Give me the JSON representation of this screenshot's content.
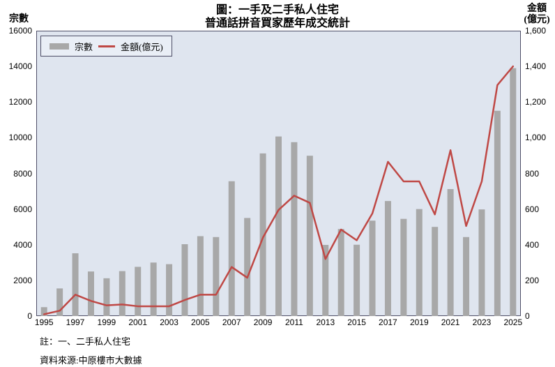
{
  "title": {
    "line1": "圖：一手及二手私人住宅",
    "line2": "普通話拼音買家歷年成交統計"
  },
  "axes": {
    "left_label": "宗數",
    "right_label_line1": "金額",
    "right_label_line2": "(億元)",
    "left_ticks": [
      "0",
      "2000",
      "4000",
      "6000",
      "8000",
      "10000",
      "12000",
      "14000",
      "16000"
    ],
    "right_ticks": [
      "0",
      "200",
      "400",
      "600",
      "800",
      "1,000",
      "1,200",
      "1,400",
      "1,600"
    ],
    "x_ticks": [
      "1995",
      "1997",
      "1999",
      "2001",
      "2003",
      "2005",
      "2007",
      "2009",
      "2011",
      "2013",
      "2015",
      "2017",
      "2019",
      "2021",
      "2023",
      "2025"
    ]
  },
  "legend": {
    "bars_label": "宗數",
    "line_label": "金額(億元)"
  },
  "notes": {
    "note": "註：一、二手私人住宅",
    "source": "資料來源:中原樓市大數據"
  },
  "colors": {
    "bar": "#a8a8a8",
    "line": "#bf4845",
    "plot_bg": "#dfe5ef",
    "plot_border": "#4d4d66",
    "legend_bg": "#e9eef6"
  },
  "chart_data": {
    "type": "bar",
    "subtype": "combo-bar-line-dual-axis",
    "title": "圖：一手及二手私人住宅 普通話拼音買家歷年成交統計",
    "categories": [
      1995,
      1996,
      1997,
      1998,
      1999,
      2000,
      2001,
      2002,
      2003,
      2004,
      2005,
      2006,
      2007,
      2008,
      2009,
      2010,
      2011,
      2012,
      2013,
      2014,
      2015,
      2016,
      2017,
      2018,
      2019,
      2020,
      2021,
      2022,
      2023,
      2024,
      2025
    ],
    "series": [
      {
        "name": "宗數",
        "type": "bar",
        "y_axis": "left",
        "values": [
          500,
          1550,
          3520,
          2500,
          2120,
          2520,
          2760,
          3000,
          2910,
          4030,
          4480,
          4430,
          7560,
          5500,
          9120,
          10070,
          9750,
          8990,
          3990,
          4880,
          4000,
          5350,
          6450,
          5450,
          6000,
          5000,
          7120,
          4430,
          5980,
          11510,
          13900
        ]
      },
      {
        "name": "金額(億元)",
        "type": "line",
        "y_axis": "right",
        "values": [
          10,
          30,
          120,
          85,
          60,
          65,
          55,
          55,
          55,
          90,
          120,
          120,
          275,
          215,
          440,
          595,
          675,
          635,
          320,
          485,
          425,
          575,
          865,
          755,
          755,
          570,
          930,
          505,
          755,
          1295,
          1400
        ]
      }
    ],
    "left_ylabel": "宗數",
    "right_ylabel": "金額(億元)",
    "left_ylim": [
      0,
      16000
    ],
    "right_ylim": [
      0,
      1600
    ],
    "left_tick_step": 2000,
    "right_tick_step": 200,
    "grid": false,
    "legend_position": "top-left"
  }
}
